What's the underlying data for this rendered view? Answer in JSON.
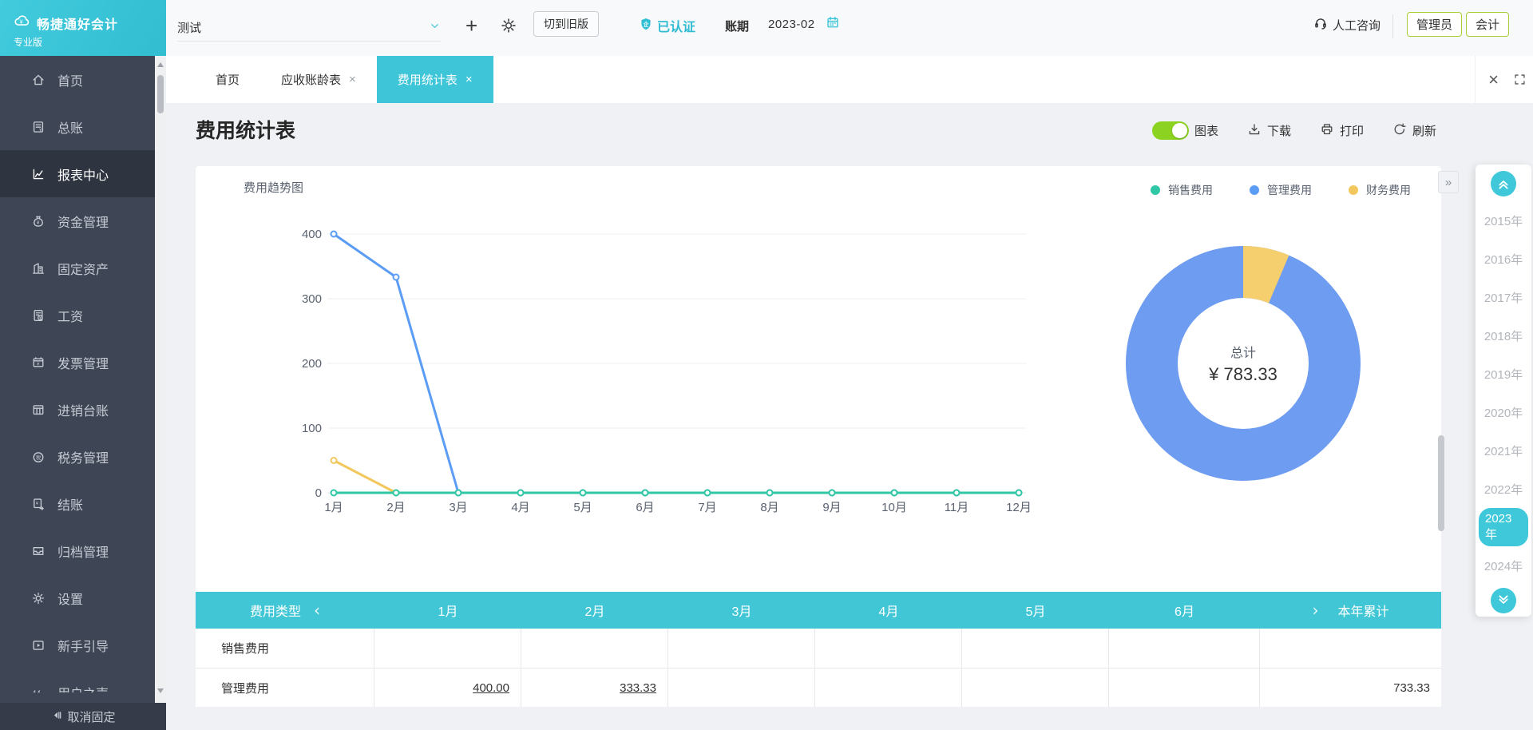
{
  "brand": {
    "name": "畅捷通好会计",
    "edition": "专业版"
  },
  "topbar": {
    "account": "测试",
    "switch_old_label": "切到旧版",
    "certified_label": "已认证",
    "period_label": "账期",
    "period_value": "2023-02",
    "support_label": "人工咨询",
    "role_admin": "管理员",
    "role_accounting": "会计"
  },
  "tabs": [
    {
      "label": "首页",
      "closable": false,
      "active": false
    },
    {
      "label": "应收账龄表",
      "closable": true,
      "active": false
    },
    {
      "label": "费用统计表",
      "closable": true,
      "active": true
    }
  ],
  "sidebar": {
    "items": [
      {
        "icon": "home",
        "label": "首页",
        "active": false
      },
      {
        "icon": "ledger",
        "label": "总账",
        "active": false
      },
      {
        "icon": "report",
        "label": "报表中心",
        "active": true
      },
      {
        "icon": "fund",
        "label": "资金管理",
        "active": false
      },
      {
        "icon": "asset",
        "label": "固定资产",
        "active": false
      },
      {
        "icon": "salary",
        "label": "工资",
        "active": false
      },
      {
        "icon": "invoice",
        "label": "发票管理",
        "active": false
      },
      {
        "icon": "trade",
        "label": "进销台账",
        "active": false
      },
      {
        "icon": "tax",
        "label": "税务管理",
        "active": false
      },
      {
        "icon": "closeacct",
        "label": "结账",
        "active": false
      },
      {
        "icon": "archive",
        "label": "归档管理",
        "active": false
      },
      {
        "icon": "settings",
        "label": "设置",
        "active": false
      },
      {
        "icon": "guide",
        "label": "新手引导",
        "active": false
      },
      {
        "icon": "quote",
        "label": "用户之声",
        "active": false
      }
    ],
    "collapse_label": "取消固定"
  },
  "page": {
    "title": "费用统计表",
    "toggle_label": "图表",
    "download_label": "下载",
    "print_label": "打印",
    "refresh_label": "刷新"
  },
  "chart_data": [
    {
      "type": "line",
      "title": "费用趋势图",
      "categories": [
        "1月",
        "2月",
        "3月",
        "4月",
        "5月",
        "6月",
        "7月",
        "8月",
        "9月",
        "10月",
        "11月",
        "12月"
      ],
      "series": [
        {
          "name": "销售费用",
          "color": "#2FC7A5",
          "values": [
            0,
            0,
            0,
            0,
            0,
            0,
            0,
            0,
            0,
            0,
            0,
            0
          ]
        },
        {
          "name": "管理费用",
          "color": "#5B9CF5",
          "values": [
            400,
            333.33,
            0,
            0,
            0,
            0,
            0,
            0,
            0,
            0,
            0,
            0
          ]
        },
        {
          "name": "财务费用",
          "color": "#F2C85E",
          "values": [
            50,
            0,
            0,
            0,
            0,
            0,
            0,
            0,
            0,
            0,
            0,
            0
          ]
        }
      ],
      "ylim": [
        0,
        400
      ],
      "yticks": [
        0,
        100,
        200,
        300,
        400
      ],
      "grid": true,
      "legend_position": "top-right"
    },
    {
      "type": "pie",
      "donut": true,
      "total_label": "总计",
      "total_value": "¥ 783.33",
      "slices": [
        {
          "name": "财务费用",
          "value": 50,
          "color": "#F5CE6E"
        },
        {
          "name": "管理费用",
          "value": 733.33,
          "color": "#6D9CF1"
        },
        {
          "name": "销售费用",
          "value": 0,
          "color": "#2FC7A5"
        }
      ],
      "start_angle": "top-clockwise"
    }
  ],
  "table": {
    "columns": [
      "费用类型",
      "1月",
      "2月",
      "3月",
      "4月",
      "5月",
      "6月",
      "本年累计"
    ],
    "rows": [
      {
        "name": "销售费用",
        "cells": [
          {
            "text": ""
          },
          {
            "text": ""
          },
          {
            "text": ""
          },
          {
            "text": ""
          },
          {
            "text": ""
          },
          {
            "text": ""
          },
          {
            "text": ""
          }
        ]
      },
      {
        "name": "管理费用",
        "cells": [
          {
            "text": "400.00",
            "link": true
          },
          {
            "text": "333.33",
            "link": true
          },
          {
            "text": ""
          },
          {
            "text": ""
          },
          {
            "text": ""
          },
          {
            "text": ""
          },
          {
            "text": "733.33"
          }
        ]
      }
    ]
  },
  "year_panel": {
    "years": [
      "2015年",
      "2016年",
      "2017年",
      "2018年",
      "2019年",
      "2020年",
      "2021年",
      "2022年",
      "2023年",
      "2024年"
    ],
    "selected": "2023年"
  },
  "colors": {
    "brand_teal": "#3EC5D8",
    "table_header": "#41C6D6",
    "toggle_green": "#8CD321",
    "role_border_green": "#A6CE39",
    "sidebar_bg": "#3E4554",
    "sidebar_active_bg": "#2E3440",
    "donut_blue": "#6D9CF1",
    "donut_yellow": "#F5CE6E"
  }
}
